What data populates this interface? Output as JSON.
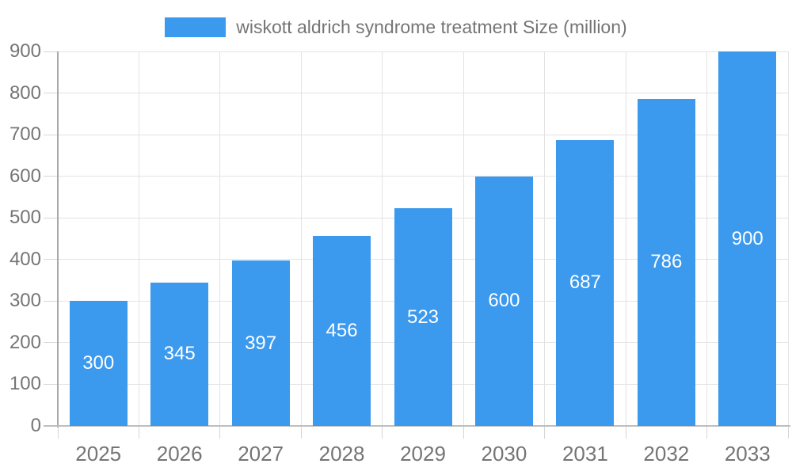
{
  "chart_data": {
    "type": "bar",
    "title": "wiskott aldrich syndrome treatment Size (million)",
    "categories": [
      "2025",
      "2026",
      "2027",
      "2028",
      "2029",
      "2030",
      "2031",
      "2032",
      "2033"
    ],
    "values": [
      300,
      345,
      397,
      456,
      523,
      600,
      687,
      786,
      900
    ],
    "xlabel": "",
    "ylabel": "",
    "ylim": [
      0,
      900
    ],
    "yticks": [
      0,
      100,
      200,
      300,
      400,
      500,
      600,
      700,
      800,
      900
    ],
    "grid": true,
    "legend_position": "top",
    "bar_labels_inside": true,
    "colors": {
      "bar": "#3B99EE",
      "bar_label": "#FFFFFF",
      "axis_text": "#757575",
      "gridline": "#E3E3E3",
      "tick": "#D6D6D6",
      "y_axis_line": "#A8A8A8",
      "x_axis_line": "#BEBEBE",
      "background": "#FFFFFF"
    }
  }
}
